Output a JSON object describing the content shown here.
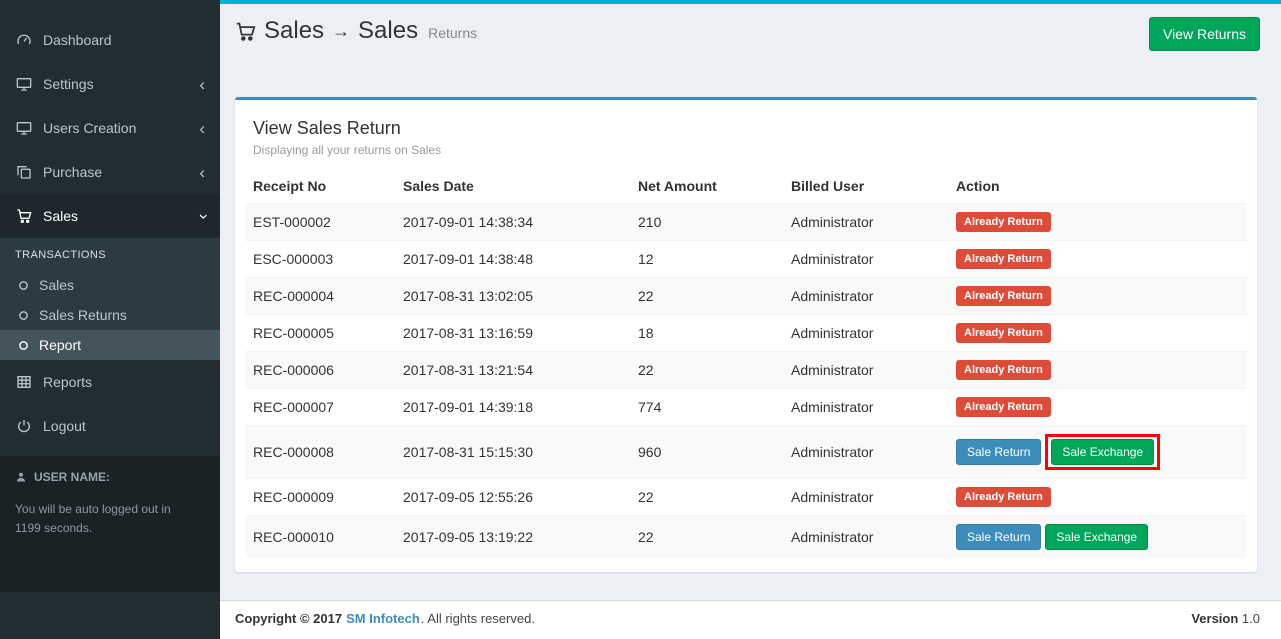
{
  "colors": {
    "primary": "#3c8dbc",
    "success": "#00a65a",
    "danger": "#dd4b39",
    "strip": "#00b4d8",
    "sidebar": "#222d32",
    "sidebar_dark": "#1a2226",
    "submenu": "#2c3b41",
    "submenu_highlight": "#44545c",
    "highlight": "#ff0000"
  },
  "icons": {
    "chevron_left": "‹",
    "chevron_down": "‹",
    "header_arrow": "→"
  },
  "sidebar": {
    "items": [
      {
        "label": "Dashboard"
      },
      {
        "label": "Settings"
      },
      {
        "label": "Users Creation"
      },
      {
        "label": "Purchase"
      },
      {
        "label": "Sales"
      }
    ],
    "submenu_header": "TRANSACTIONS",
    "submenu": [
      {
        "label": "Sales"
      },
      {
        "label": "Sales Returns"
      },
      {
        "label": "Report"
      }
    ],
    "bottom_items": [
      {
        "label": "Reports"
      },
      {
        "label": "Logout"
      }
    ],
    "user_label": "USER NAME:",
    "logout_notice": "You will be auto logged out in 1199 seconds."
  },
  "header": {
    "title_primary": "Sales",
    "title_secondary": "Sales",
    "title_small": "Returns",
    "view_returns_label": "View Returns"
  },
  "card": {
    "title": "View Sales Return",
    "subtitle": "Displaying all your returns on Sales",
    "table": {
      "columns": [
        "Receipt No",
        "Sales Date",
        "Net Amount",
        "Billed User",
        "Action"
      ],
      "rows": [
        {
          "receipt_no": "EST-000002",
          "sales_date": "2017-09-01 14:38:34",
          "net_amount": "210",
          "billed_user": "Administrator",
          "status": "already_return"
        },
        {
          "receipt_no": "ESC-000003",
          "sales_date": "2017-09-01 14:38:48",
          "net_amount": "12",
          "billed_user": "Administrator",
          "status": "already_return"
        },
        {
          "receipt_no": "REC-000004",
          "sales_date": "2017-08-31 13:02:05",
          "net_amount": "22",
          "billed_user": "Administrator",
          "status": "already_return"
        },
        {
          "receipt_no": "REC-000005",
          "sales_date": "2017-08-31 13:16:59",
          "net_amount": "18",
          "billed_user": "Administrator",
          "status": "already_return"
        },
        {
          "receipt_no": "REC-000006",
          "sales_date": "2017-08-31 13:21:54",
          "net_amount": "22",
          "billed_user": "Administrator",
          "status": "already_return"
        },
        {
          "receipt_no": "REC-000007",
          "sales_date": "2017-09-01 14:39:18",
          "net_amount": "774",
          "billed_user": "Administrator",
          "status": "already_return"
        },
        {
          "receipt_no": "REC-000008",
          "sales_date": "2017-08-31 15:15:30",
          "net_amount": "960",
          "billed_user": "Administrator",
          "status": "actions",
          "highlight_exchange": true
        },
        {
          "receipt_no": "REC-000009",
          "sales_date": "2017-09-05 12:55:26",
          "net_amount": "22",
          "billed_user": "Administrator",
          "status": "already_return"
        },
        {
          "receipt_no": "REC-000010",
          "sales_date": "2017-09-05 13:19:22",
          "net_amount": "22",
          "billed_user": "Administrator",
          "status": "actions",
          "highlight_exchange": false
        }
      ]
    }
  },
  "labels": {
    "already_return": "Already Return",
    "sale_return": "Sale Return",
    "sale_exchange": "Sale Exchange"
  },
  "footer": {
    "copyright_prefix": "Copyright © 2017",
    "company": "SM Infotech",
    "copyright_suffix": ". All rights reserved.",
    "version_label": "Version",
    "version_value": "1.0"
  }
}
